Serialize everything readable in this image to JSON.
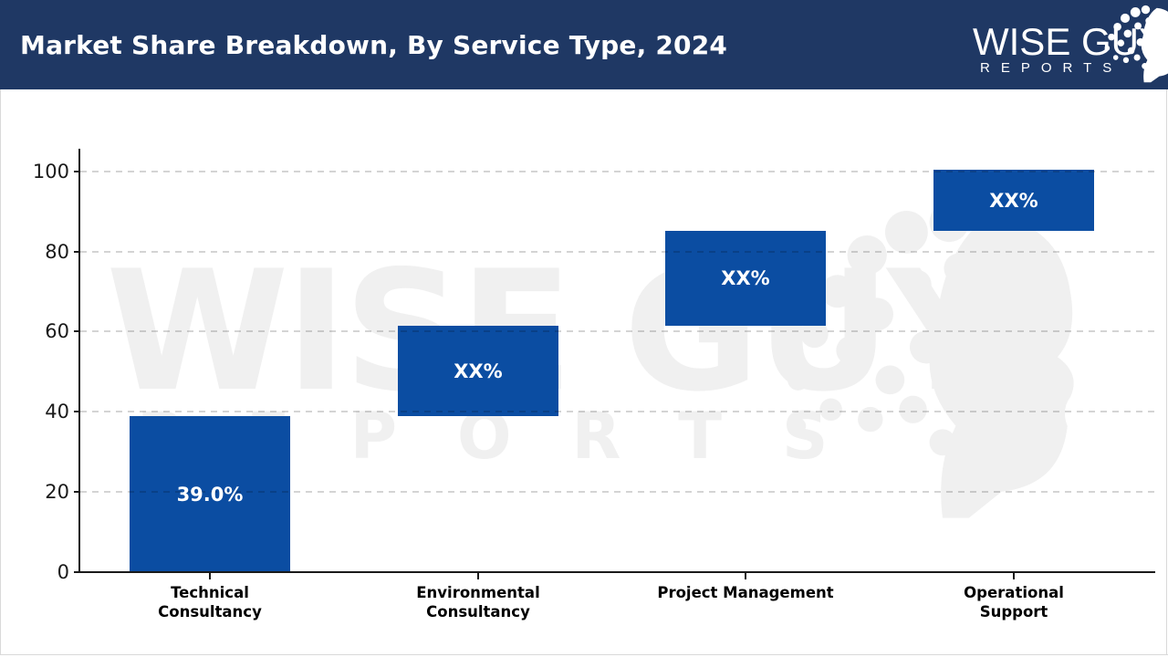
{
  "header": {
    "title": "Market Share Breakdown, By Service Type, 2024",
    "logo": {
      "line1": "WISE GUY",
      "line2": "REPORTS"
    }
  },
  "watermark": {
    "line1": "WISE GUY",
    "line2": "REPORTS"
  },
  "chart_data": {
    "type": "bar",
    "subtype": "waterfall",
    "title": "Market Share Breakdown, By Service Type, 2024",
    "categories": [
      "Technical Consultancy",
      "Environmental Consultancy",
      "Project Management",
      "Operational Support"
    ],
    "category_label_lines": [
      [
        "Technical",
        "Consultancy"
      ],
      [
        "Environmental",
        "Consultancy"
      ],
      [
        "Project Management"
      ],
      [
        "Operational",
        "Support"
      ]
    ],
    "segments": [
      {
        "start": 0,
        "end": 39.0,
        "label": "39.0%"
      },
      {
        "start": 39.0,
        "end": 61.4,
        "label": "XX%"
      },
      {
        "start": 61.4,
        "end": 85.2,
        "label": "XX%"
      },
      {
        "start": 85.2,
        "end": 100.3,
        "label": "XX%"
      }
    ],
    "yticks": [
      0,
      20,
      40,
      60,
      80,
      100
    ],
    "ylim": [
      0,
      105
    ],
    "xlabel": "",
    "ylabel": "",
    "grid": "horizontal-dashed",
    "legend": "none"
  },
  "colors": {
    "header_bg": "#1f3864",
    "bar": "#0b4da2",
    "bar_label": "#ffffff",
    "axis": "#1a1a1a",
    "grid_overlay": "rgba(0,0,0,0.17)",
    "watermark": "#f0f0f0",
    "figure_border": "#d9d9d9",
    "background": "#ffffff"
  }
}
